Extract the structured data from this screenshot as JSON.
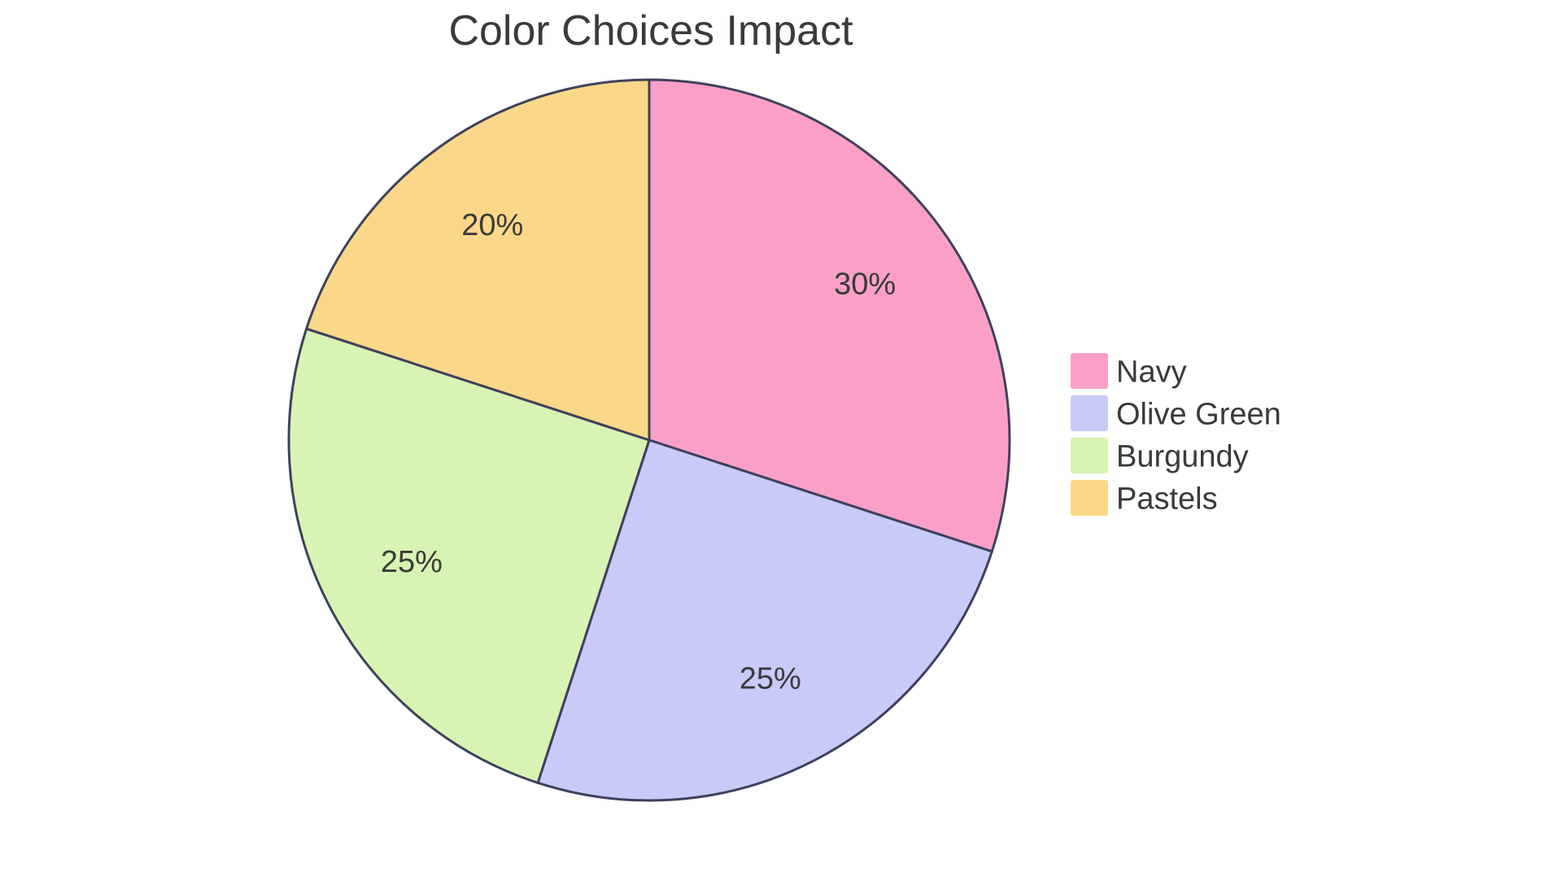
{
  "chart_data": {
    "type": "pie",
    "title": "Color Choices Impact",
    "labels": [
      "Navy",
      "Olive Green",
      "Burgundy",
      "Pastels"
    ],
    "values": [
      30,
      25,
      25,
      20
    ],
    "value_labels": [
      "30%",
      "25%",
      "25%",
      "20%"
    ],
    "colors": [
      "#FAA0C8",
      "#C8CBF7",
      "#D8F4B4",
      "#FBD889"
    ],
    "slice_border_color": "#3F415C",
    "text_color": "#3A3A3A",
    "background_color": "#FFFFFF",
    "start_angle": "top",
    "direction": "clockwise",
    "legend_position": "right"
  }
}
